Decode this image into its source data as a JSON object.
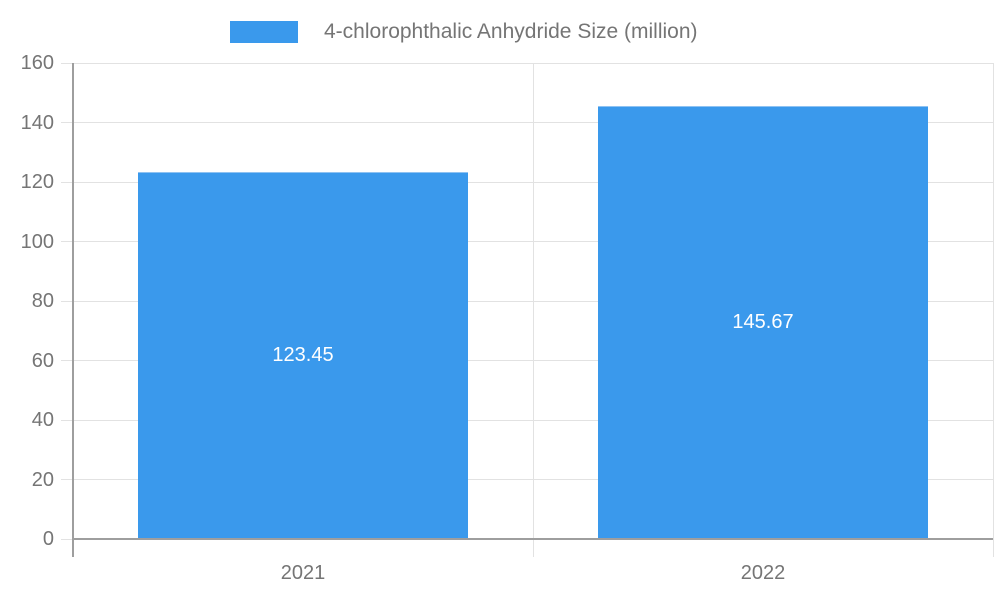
{
  "chart_data": {
    "type": "bar",
    "title": "",
    "legend": {
      "label": "4-chlorophthalic Anhydride Size (million)",
      "position": "top"
    },
    "categories": [
      "2021",
      "2022"
    ],
    "series": [
      {
        "name": "4-chlorophthalic Anhydride Size (million)",
        "values": [
          123.45,
          145.67
        ],
        "data_labels": [
          "123.45",
          "145.67"
        ]
      }
    ],
    "xlabel": "",
    "ylabel": "",
    "ylim": [
      0,
      160
    ],
    "yticks": [
      0,
      20,
      40,
      60,
      80,
      100,
      120,
      140,
      160
    ],
    "grid": true,
    "colors": {
      "bar": "#3a99ec",
      "bar_edge": "#8ec2f2",
      "value_label": "#ffffff",
      "text": "#757575",
      "axis": "#9e9e9e",
      "gridline": "#e2e2e2",
      "background": "#ffffff"
    }
  }
}
